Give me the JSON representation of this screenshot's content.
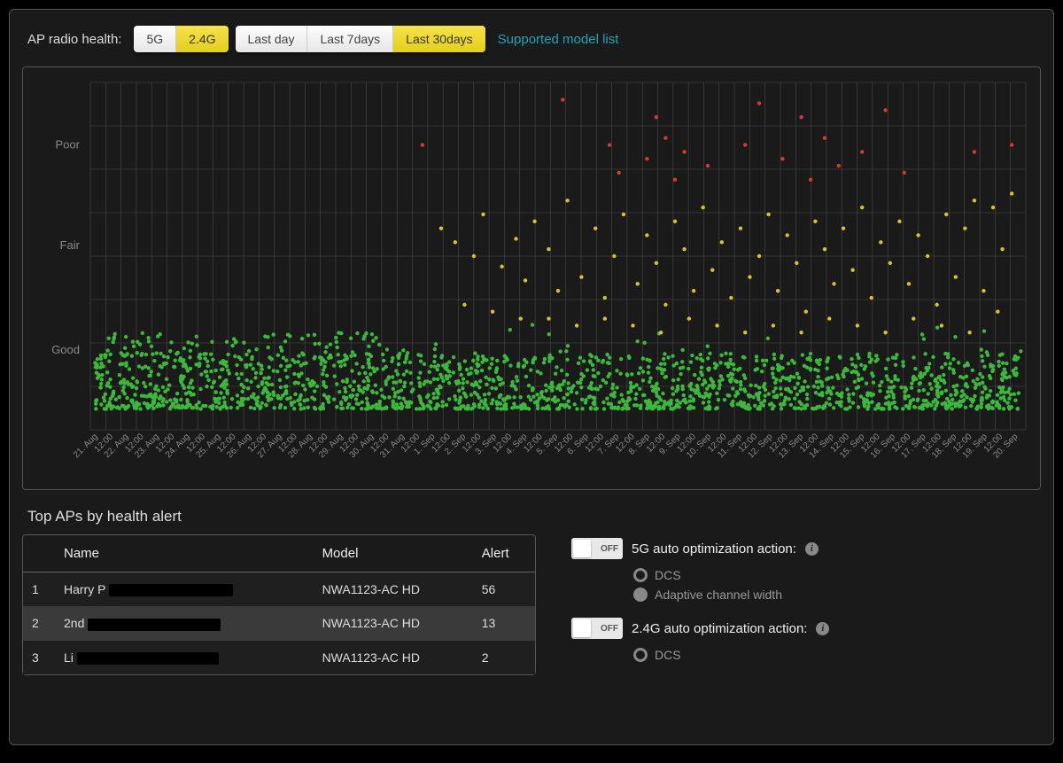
{
  "header": {
    "label": "AP radio health:",
    "band_buttons": [
      {
        "label": "5G",
        "active": false
      },
      {
        "label": "2.4G",
        "active": true
      }
    ],
    "range_buttons": [
      {
        "label": "Last day",
        "active": false
      },
      {
        "label": "Last 7days",
        "active": false
      },
      {
        "label": "Last 30days",
        "active": true
      }
    ],
    "link": "Supported model list"
  },
  "chart": {
    "type": "scatter",
    "background_color": "#1a1a1a",
    "grid_color": "#4a4a4a",
    "axis_label_color": "#8a8a8a",
    "axis_fontsize": 10,
    "y_labels": [
      "Good",
      "Fair",
      "Poor"
    ],
    "y_positions": [
      0.23,
      0.53,
      0.82
    ],
    "x_labels": [
      "21. Aug",
      "12:00",
      "22. Aug",
      "12:00",
      "23. Aug",
      "12:00",
      "24. Aug",
      "12:00",
      "25. Aug",
      "12:00",
      "26. Aug",
      "12:00",
      "27. Aug",
      "12:00",
      "28. Aug",
      "12:00",
      "29. Aug",
      "12:00",
      "30. Aug",
      "12:00",
      "31. Aug",
      "12:00",
      "1. Sep",
      "12:00",
      "2. Sep",
      "12:00",
      "3. Sep",
      "12:00",
      "4. Sep",
      "12:00",
      "5. Sep",
      "12:00",
      "6. Sep",
      "12:00",
      "7. Sep",
      "12:00",
      "8. Sep",
      "12:00",
      "9. Sep",
      "12:00",
      "10. Sep",
      "12:00",
      "11. Sep",
      "12:00",
      "12. Sep",
      "12:00",
      "13. Sep",
      "12:00",
      "14. Sep",
      "12:00",
      "15. Sep",
      "12:00",
      "16. Sep",
      "12:00",
      "17. Sep",
      "12:00",
      "18. Sep",
      "12:00",
      "19. Sep",
      "12:00",
      "20. Sep"
    ],
    "marker_radius": 2.2,
    "colors": {
      "good": "#3bb93b",
      "fair": "#d9c22a",
      "poor": "#d83a2a"
    },
    "density": {
      "green_band": {
        "ymin": 0.06,
        "ymax": 0.22,
        "count": 1800
      },
      "yellow_scatter": [
        {
          "x": 0.375,
          "y": 0.58
        },
        {
          "x": 0.39,
          "y": 0.54
        },
        {
          "x": 0.41,
          "y": 0.5
        },
        {
          "x": 0.42,
          "y": 0.62
        },
        {
          "x": 0.44,
          "y": 0.47
        },
        {
          "x": 0.455,
          "y": 0.55
        },
        {
          "x": 0.465,
          "y": 0.43
        },
        {
          "x": 0.475,
          "y": 0.6
        },
        {
          "x": 0.49,
          "y": 0.52
        },
        {
          "x": 0.5,
          "y": 0.4
        },
        {
          "x": 0.51,
          "y": 0.66
        },
        {
          "x": 0.525,
          "y": 0.44
        },
        {
          "x": 0.54,
          "y": 0.58
        },
        {
          "x": 0.55,
          "y": 0.38
        },
        {
          "x": 0.56,
          "y": 0.5
        },
        {
          "x": 0.57,
          "y": 0.62
        },
        {
          "x": 0.585,
          "y": 0.42
        },
        {
          "x": 0.595,
          "y": 0.56
        },
        {
          "x": 0.605,
          "y": 0.48
        },
        {
          "x": 0.615,
          "y": 0.36
        },
        {
          "x": 0.625,
          "y": 0.6
        },
        {
          "x": 0.635,
          "y": 0.52
        },
        {
          "x": 0.645,
          "y": 0.4
        },
        {
          "x": 0.655,
          "y": 0.64
        },
        {
          "x": 0.665,
          "y": 0.46
        },
        {
          "x": 0.675,
          "y": 0.54
        },
        {
          "x": 0.685,
          "y": 0.38
        },
        {
          "x": 0.695,
          "y": 0.58
        },
        {
          "x": 0.705,
          "y": 0.44
        },
        {
          "x": 0.715,
          "y": 0.5
        },
        {
          "x": 0.725,
          "y": 0.62
        },
        {
          "x": 0.735,
          "y": 0.4
        },
        {
          "x": 0.745,
          "y": 0.56
        },
        {
          "x": 0.755,
          "y": 0.48
        },
        {
          "x": 0.765,
          "y": 0.34
        },
        {
          "x": 0.775,
          "y": 0.6
        },
        {
          "x": 0.785,
          "y": 0.52
        },
        {
          "x": 0.795,
          "y": 0.42
        },
        {
          "x": 0.805,
          "y": 0.58
        },
        {
          "x": 0.815,
          "y": 0.46
        },
        {
          "x": 0.825,
          "y": 0.64
        },
        {
          "x": 0.835,
          "y": 0.38
        },
        {
          "x": 0.845,
          "y": 0.54
        },
        {
          "x": 0.855,
          "y": 0.48
        },
        {
          "x": 0.865,
          "y": 0.6
        },
        {
          "x": 0.875,
          "y": 0.42
        },
        {
          "x": 0.885,
          "y": 0.56
        },
        {
          "x": 0.895,
          "y": 0.5
        },
        {
          "x": 0.905,
          "y": 0.36
        },
        {
          "x": 0.915,
          "y": 0.62
        },
        {
          "x": 0.925,
          "y": 0.44
        },
        {
          "x": 0.935,
          "y": 0.58
        },
        {
          "x": 0.945,
          "y": 0.66
        },
        {
          "x": 0.955,
          "y": 0.4
        },
        {
          "x": 0.965,
          "y": 0.64
        },
        {
          "x": 0.975,
          "y": 0.52
        },
        {
          "x": 0.985,
          "y": 0.68
        },
        {
          "x": 0.4,
          "y": 0.36
        },
        {
          "x": 0.43,
          "y": 0.34
        },
        {
          "x": 0.46,
          "y": 0.32
        },
        {
          "x": 0.49,
          "y": 0.32
        },
        {
          "x": 0.52,
          "y": 0.3
        },
        {
          "x": 0.55,
          "y": 0.32
        },
        {
          "x": 0.58,
          "y": 0.3
        },
        {
          "x": 0.61,
          "y": 0.28
        },
        {
          "x": 0.64,
          "y": 0.32
        },
        {
          "x": 0.67,
          "y": 0.3
        },
        {
          "x": 0.7,
          "y": 0.28
        },
        {
          "x": 0.73,
          "y": 0.3
        },
        {
          "x": 0.76,
          "y": 0.28
        },
        {
          "x": 0.79,
          "y": 0.32
        },
        {
          "x": 0.82,
          "y": 0.3
        },
        {
          "x": 0.85,
          "y": 0.28
        },
        {
          "x": 0.88,
          "y": 0.32
        },
        {
          "x": 0.91,
          "y": 0.3
        },
        {
          "x": 0.94,
          "y": 0.28
        },
        {
          "x": 0.97,
          "y": 0.34
        }
      ],
      "red_scatter": [
        {
          "x": 0.355,
          "y": 0.82
        },
        {
          "x": 0.505,
          "y": 0.95
        },
        {
          "x": 0.555,
          "y": 0.82
        },
        {
          "x": 0.565,
          "y": 0.74
        },
        {
          "x": 0.595,
          "y": 0.78
        },
        {
          "x": 0.605,
          "y": 0.9
        },
        {
          "x": 0.615,
          "y": 0.84
        },
        {
          "x": 0.625,
          "y": 0.72
        },
        {
          "x": 0.635,
          "y": 0.8
        },
        {
          "x": 0.66,
          "y": 0.76
        },
        {
          "x": 0.7,
          "y": 0.82
        },
        {
          "x": 0.715,
          "y": 0.94
        },
        {
          "x": 0.74,
          "y": 0.78
        },
        {
          "x": 0.76,
          "y": 0.9
        },
        {
          "x": 0.77,
          "y": 0.72
        },
        {
          "x": 0.785,
          "y": 0.84
        },
        {
          "x": 0.8,
          "y": 0.76
        },
        {
          "x": 0.825,
          "y": 0.8
        },
        {
          "x": 0.85,
          "y": 0.92
        },
        {
          "x": 0.87,
          "y": 0.74
        },
        {
          "x": 0.945,
          "y": 0.8
        },
        {
          "x": 0.985,
          "y": 0.82
        }
      ]
    }
  },
  "top_aps": {
    "title": "Top APs by health alert",
    "columns": [
      "",
      "Name",
      "Model",
      "Alert"
    ],
    "rows": [
      {
        "rank": "1",
        "name_prefix": "Harry P",
        "redact_width": 140,
        "model": "NWA1123-AC HD",
        "alert": "56"
      },
      {
        "rank": "2",
        "name_prefix": "2nd",
        "redact_width": 150,
        "model": "NWA1123-AC HD",
        "alert": "13"
      },
      {
        "rank": "3",
        "name_prefix": "Li",
        "redact_width": 160,
        "model": "NWA1123-AC HD",
        "alert": "2"
      }
    ]
  },
  "optimization": {
    "g5": {
      "toggle_state": "OFF",
      "title": "5G auto optimization action:",
      "options": [
        {
          "label": "DCS",
          "filled": false
        },
        {
          "label": "Adaptive channel width",
          "filled": true
        }
      ]
    },
    "g24": {
      "toggle_state": "OFF",
      "title": "2.4G auto optimization action:",
      "options": [
        {
          "label": "DCS",
          "filled": false
        }
      ]
    }
  }
}
